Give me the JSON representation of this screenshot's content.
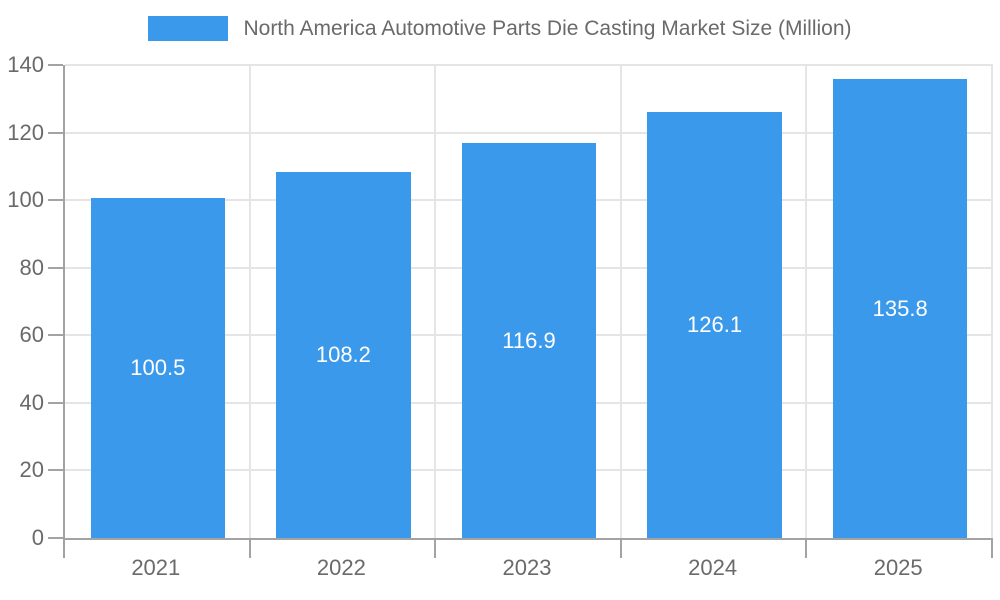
{
  "legend": {
    "label": "North America Automotive Parts Die Casting Market Size (Million)",
    "swatch_color": "#3b99ec"
  },
  "colors": {
    "background": "#ffffff",
    "bar": "#3b99ec",
    "grid": "#e5e5e5",
    "axis": "#a3a3a3",
    "tick_label": "#6a6a6a",
    "legend_label": "#6a6a6a",
    "value_label": "#ffffff"
  },
  "chart_data": {
    "type": "bar",
    "title": "North America Automotive Parts Die Casting Market Size (Million)",
    "categories": [
      "2021",
      "2022",
      "2023",
      "2024",
      "2025"
    ],
    "values": [
      100.5,
      108.2,
      116.9,
      126.1,
      135.8
    ],
    "value_labels": [
      "100.5",
      "108.2",
      "116.9",
      "126.1",
      "135.8"
    ],
    "value_label_position": "inside-center",
    "xlabel": "",
    "ylabel": "",
    "ylim": [
      0,
      140
    ],
    "ytick_step": 20,
    "yticks": [
      0,
      20,
      40,
      60,
      80,
      100,
      120,
      140
    ],
    "grid": true,
    "legend_position": "top-center"
  }
}
